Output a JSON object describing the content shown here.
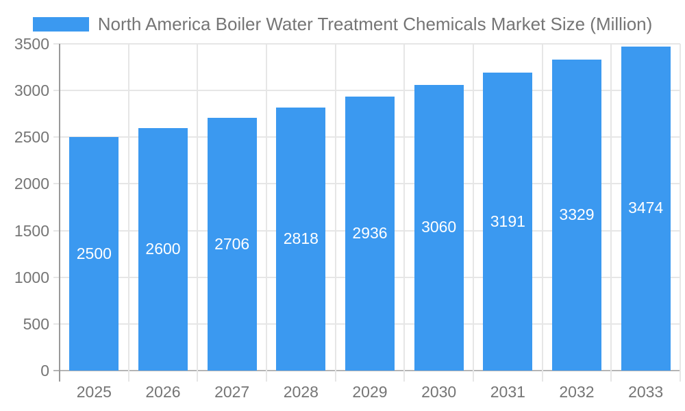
{
  "chart_data": {
    "type": "bar",
    "title": "North America Boiler Water Treatment Chemicals Market Size (Million)",
    "categories": [
      "2025",
      "2026",
      "2027",
      "2028",
      "2029",
      "2030",
      "2031",
      "2032",
      "2033"
    ],
    "values": [
      2500,
      2600,
      2706,
      2818,
      2936,
      3060,
      3191,
      3329,
      3474
    ],
    "series": [
      {
        "name": "North America Boiler Water Treatment Chemicals Market Size (Million)",
        "values": [
          2500,
          2600,
          2706,
          2818,
          2936,
          3060,
          3191,
          3329,
          3474
        ]
      }
    ],
    "xlabel": "",
    "ylabel": "",
    "ylim": [
      0,
      3500
    ],
    "yticks": [
      0,
      500,
      1000,
      1500,
      2000,
      2500,
      3000,
      3500
    ],
    "grid": true,
    "legend_position": "top",
    "bar_value_labels_shown": true
  },
  "legend": {
    "swatch_icon": "bar-series-swatch"
  },
  "colors": {
    "bar": "#3B99F0",
    "bar_value_label": "#FFFFFF",
    "axis_text": "#757575",
    "grid_line": "#E6E6E6",
    "axis_line": "#999999",
    "baseline": "#B5B5B5",
    "background": "#FFFFFF"
  }
}
